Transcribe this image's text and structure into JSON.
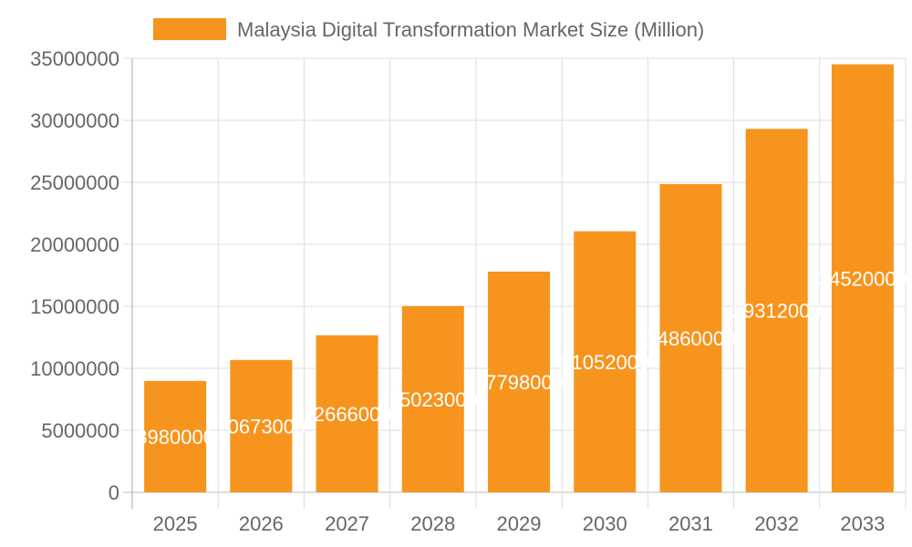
{
  "chart_data": {
    "type": "bar",
    "title": "",
    "legend": {
      "position": "top",
      "entries": [
        "Malaysia Digital Transformation Market Size (Million)"
      ]
    },
    "categories": [
      "2025",
      "2026",
      "2027",
      "2028",
      "2029",
      "2030",
      "2031",
      "2032",
      "2033"
    ],
    "series": [
      {
        "name": "Malaysia Digital Transformation Market Size (Million)",
        "values": [
          8980000,
          10673000,
          12666000,
          15023000,
          17798000,
          21052000,
          24860000,
          29312000,
          34520000
        ],
        "color": "#f7941e"
      }
    ],
    "ylim": [
      0,
      35000000
    ],
    "yticks": [
      "0",
      "5000000",
      "10000000",
      "15000000",
      "20000000",
      "25000000",
      "30000000",
      "35000000"
    ],
    "grid": true,
    "data_labels": true,
    "xlabel": "",
    "ylabel": ""
  }
}
